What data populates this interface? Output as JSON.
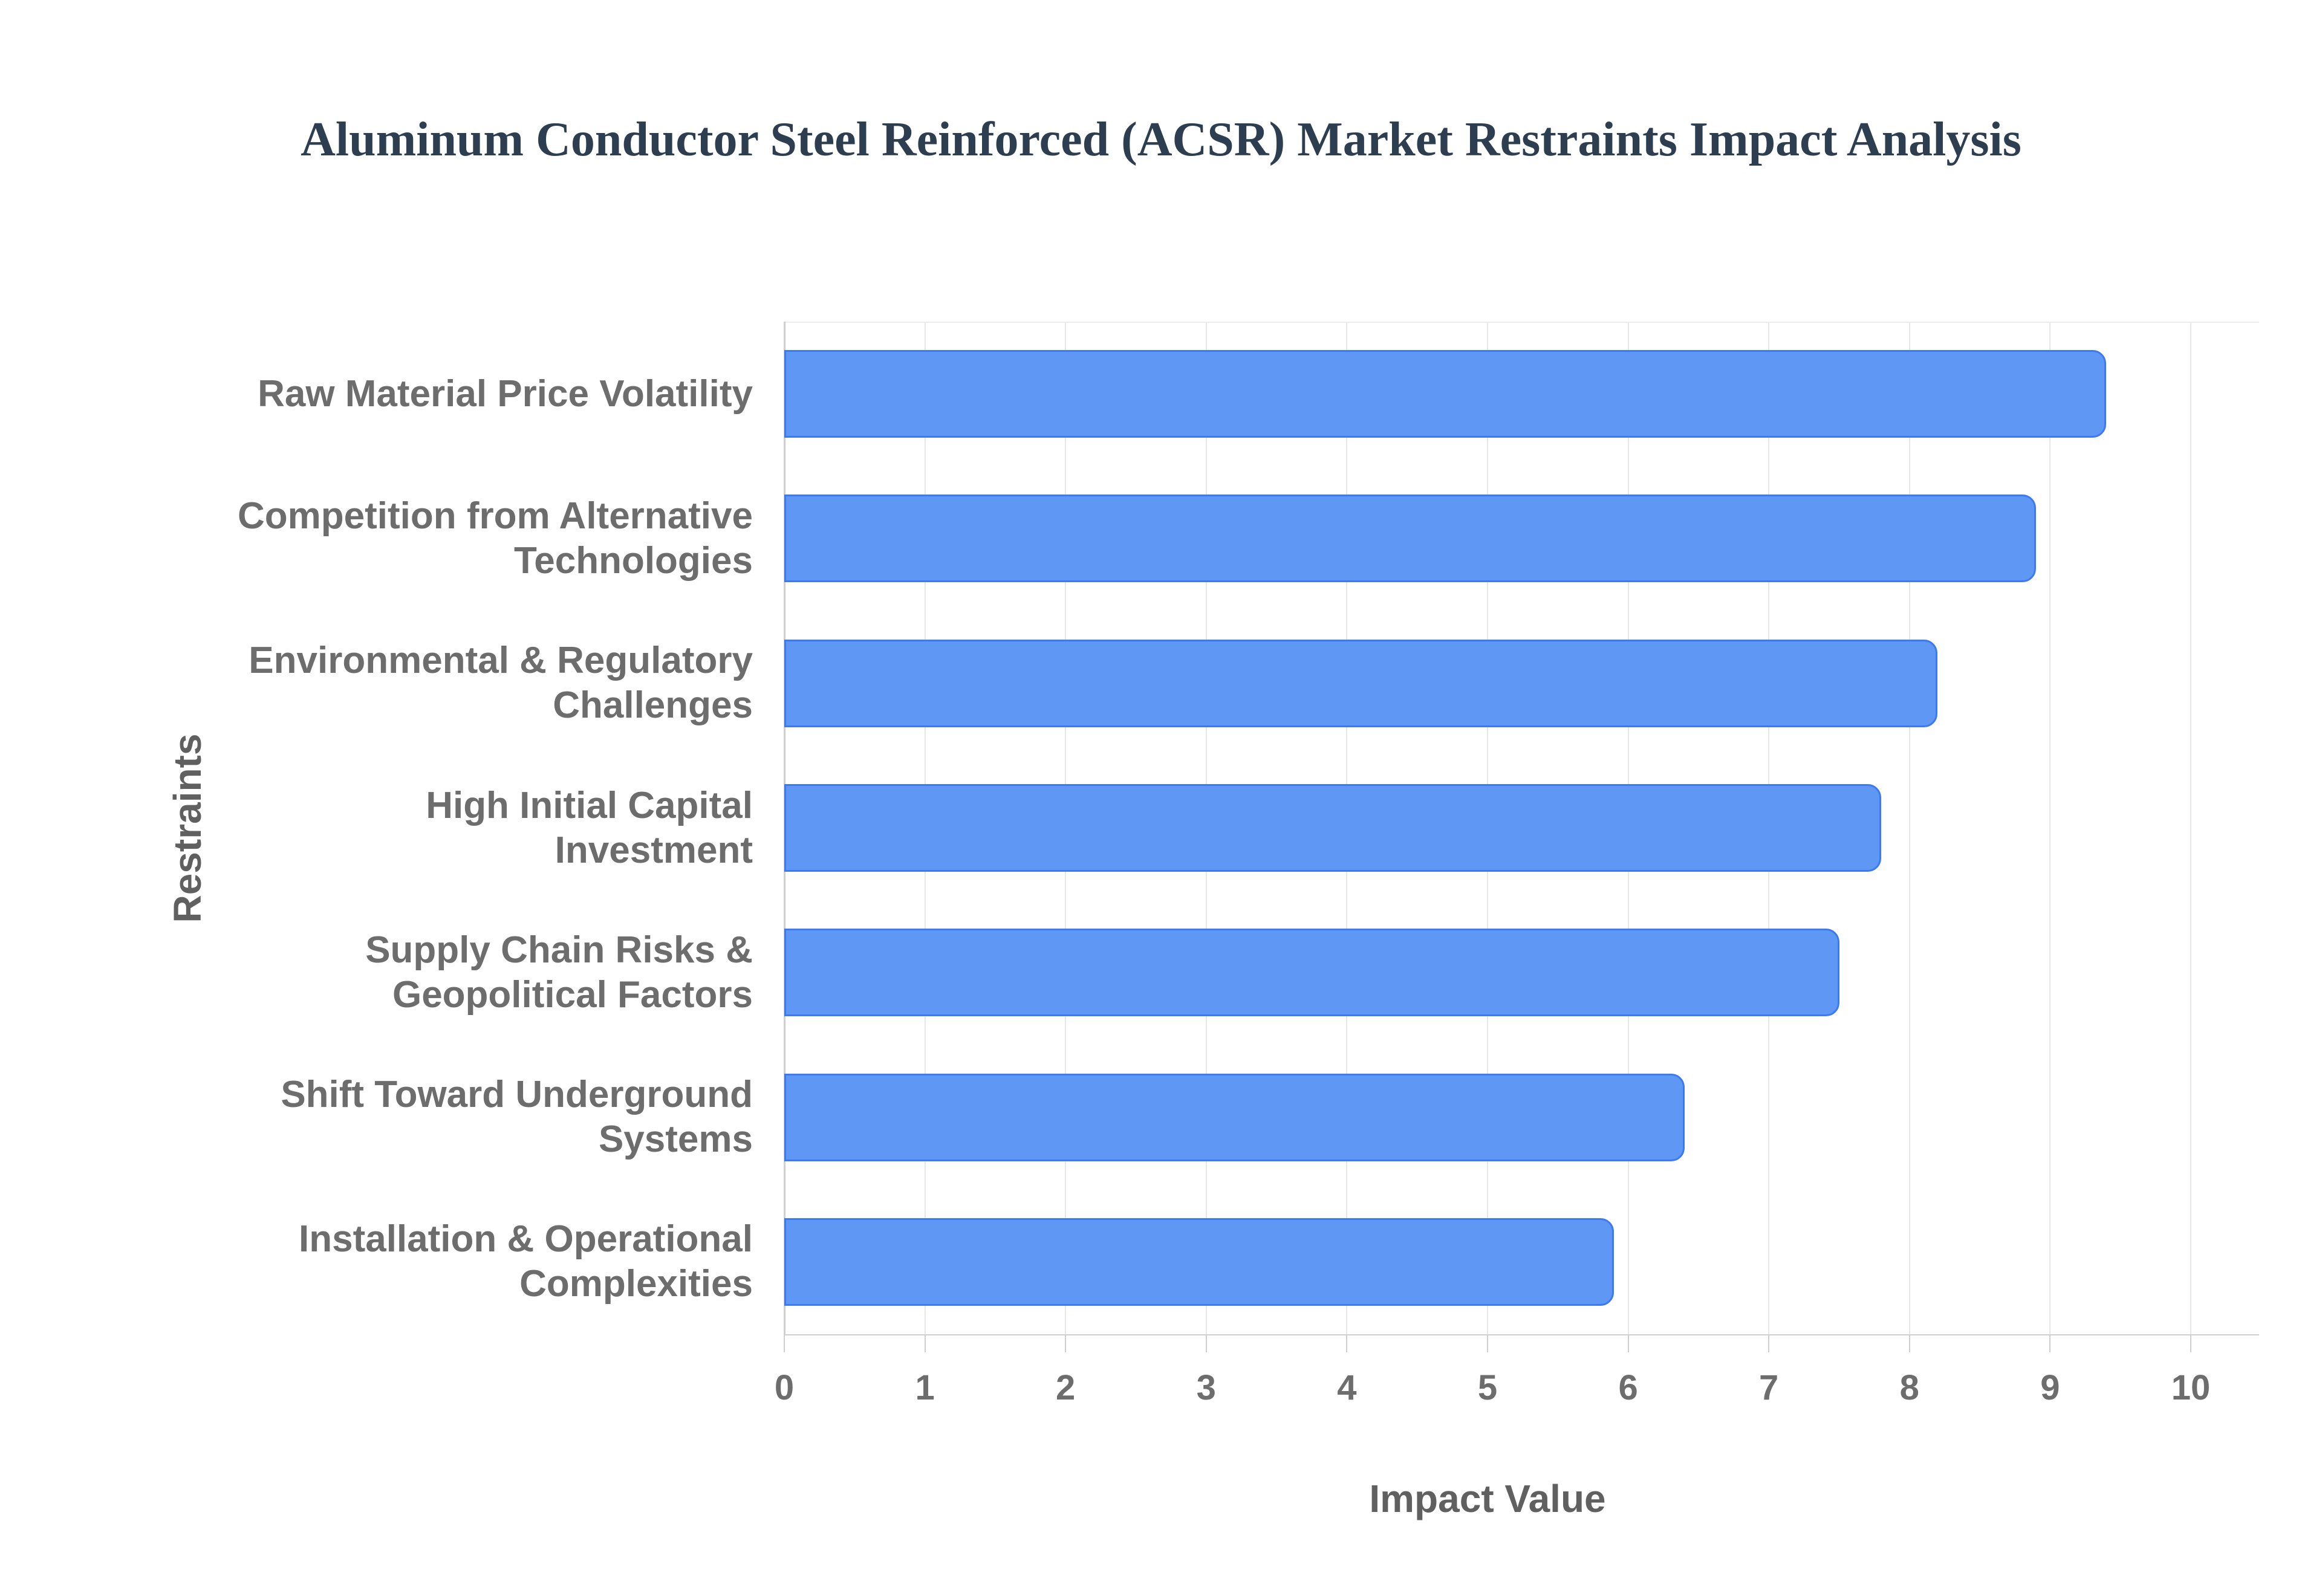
{
  "title": "Aluminum Conductor Steel Reinforced (ACSR) Market Restraints Impact Analysis",
  "chart_data": {
    "type": "bar",
    "orientation": "horizontal",
    "title": "Aluminum Conductor Steel Reinforced (ACSR) Market Restraints Impact Analysis",
    "xlabel": "Impact Value",
    "ylabel": "Restraints",
    "xlim": [
      0,
      10
    ],
    "xticks": [
      0,
      1,
      2,
      3,
      4,
      5,
      6,
      7,
      8,
      9,
      10
    ],
    "grid": "vertical-only",
    "legend": "none",
    "categories": [
      "Raw Material Price Volatility",
      "Competition from Alternative Technologies",
      "Environmental & Regulatory Challenges",
      "High Initial Capital Investment",
      "Supply Chain Risks & Geopolitical Factors",
      "Shift Toward Underground Systems",
      "Installation & Operational Complexities"
    ],
    "category_label_lines": [
      [
        "Raw Material Price Volatility"
      ],
      [
        "Competition from Alternative",
        "Technologies"
      ],
      [
        "Environmental & Regulatory",
        "Challenges"
      ],
      [
        "High Initial Capital",
        "Investment"
      ],
      [
        "Supply Chain Risks &",
        "Geopolitical Factors"
      ],
      [
        "Shift Toward Underground",
        "Systems"
      ],
      [
        "Installation & Operational",
        "Complexities"
      ]
    ],
    "values": [
      9.4,
      8.9,
      8.2,
      7.8,
      7.5,
      6.4,
      5.9
    ],
    "colors": {
      "bar_fill": "#5f97f5",
      "bar_border": "#3d7af0",
      "gridline": "#e7e7e7",
      "axis_line": "#d0d0d0",
      "tick_text": "#6d6d6d",
      "category_text": "#6d6d6d",
      "axis_title_text": "#606060",
      "title_text": "#2c3e50"
    }
  }
}
